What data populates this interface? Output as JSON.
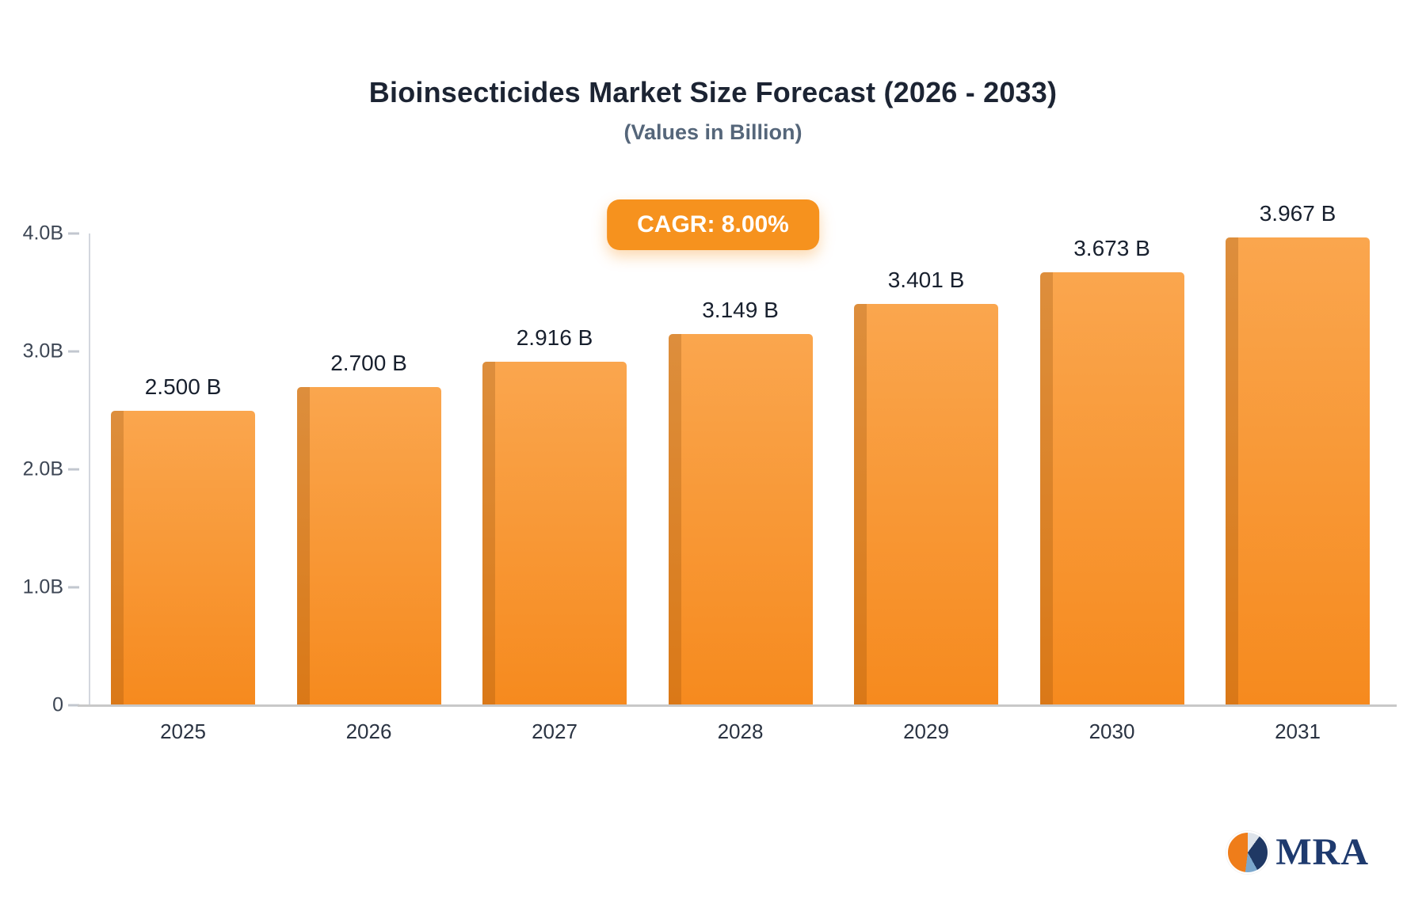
{
  "header": {
    "title": "Bioinsecticides Market Size Forecast (2026 - 2033)",
    "subtitle": "(Values in Billion)",
    "cagr_badge": "CAGR: 8.00%"
  },
  "chart_data": {
    "type": "bar",
    "title": "Bioinsecticides Market Size Forecast (2026 - 2033)",
    "subtitle": "(Values in Billion)",
    "annotation": "CAGR: 8.00%",
    "categories": [
      "2025",
      "2026",
      "2027",
      "2028",
      "2029",
      "2030",
      "2031"
    ],
    "values": [
      2.5,
      2.7,
      2.916,
      3.149,
      3.401,
      3.673,
      3.967
    ],
    "value_labels": [
      "2.500 B",
      "2.700 B",
      "2.916 B",
      "3.149 B",
      "3.401 B",
      "3.673 B",
      "3.967 B"
    ],
    "xlabel": "",
    "ylabel": "",
    "ytick_labels": [
      "0",
      "1.0B",
      "2.0B",
      "3.0B",
      "4.0B"
    ],
    "ylim": [
      0,
      4.0
    ],
    "grid": false,
    "legend": "none",
    "colors": {
      "bar_top": "#faa64e",
      "bar_bottom": "#f68a1e",
      "bar_edge_shadow": "#c97817",
      "badge": "#f6921e",
      "axis": "#d3d7de",
      "title_text": "#1c2433",
      "subtitle_text": "#55667a"
    }
  },
  "footer": {
    "logo_text": "MRA"
  }
}
